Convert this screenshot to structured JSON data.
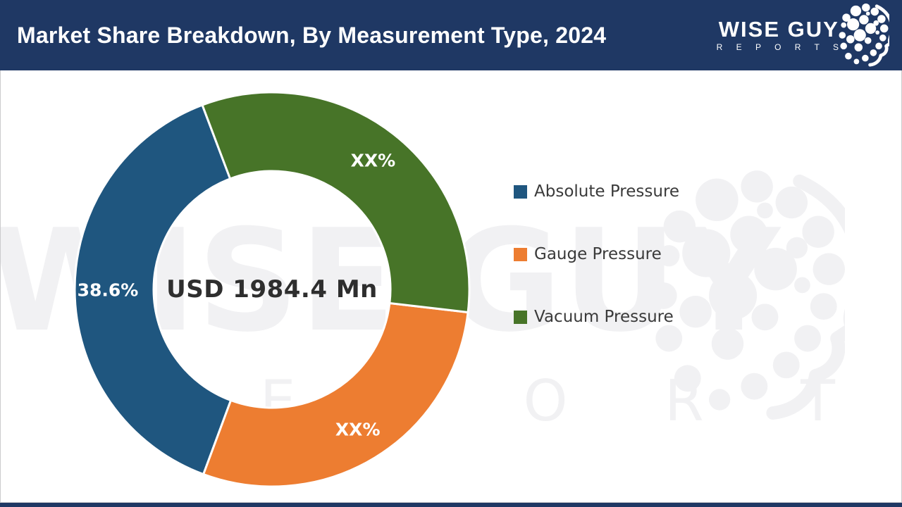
{
  "header": {
    "title": "Market Share Breakdown, By Measurement Type, 2024",
    "logo": {
      "line1": "WISE GUY",
      "line2": "R E P O R T S"
    }
  },
  "watermark": {
    "line1": "WISE GUY",
    "line2": "R E P O R T S"
  },
  "chart_data": {
    "type": "pie",
    "subtype": "donut",
    "title": "Market Share Breakdown, By Measurement Type, 2024",
    "center_label": "USD 1984.4 Mn",
    "inner_radius_ratio": 0.6,
    "start_angle_deg_clockwise_from_top": -20.7,
    "direction": "counterclockwise",
    "legend_position": "right",
    "slice_label_color": "#FFFFFF",
    "segments": [
      {
        "label": "Absolute Pressure",
        "color": "#1F567F",
        "value_pct": 38.6,
        "display_label": "38.6%"
      },
      {
        "label": "Gauge Pressure",
        "color": "#ED7D31",
        "value_pct": 28.8,
        "display_label": "XX%"
      },
      {
        "label": "Vacuum Pressure",
        "color": "#477428",
        "value_pct": 32.6,
        "display_label": "XX%"
      }
    ]
  },
  "colors": {
    "header_bg": "#1F3864",
    "footer_bar": "#1F3864",
    "watermark": "#F1F1F3",
    "frame_border": "#CBCBCD",
    "center_text": "#2E2E2E",
    "legend_text": "#3A3A3A"
  }
}
